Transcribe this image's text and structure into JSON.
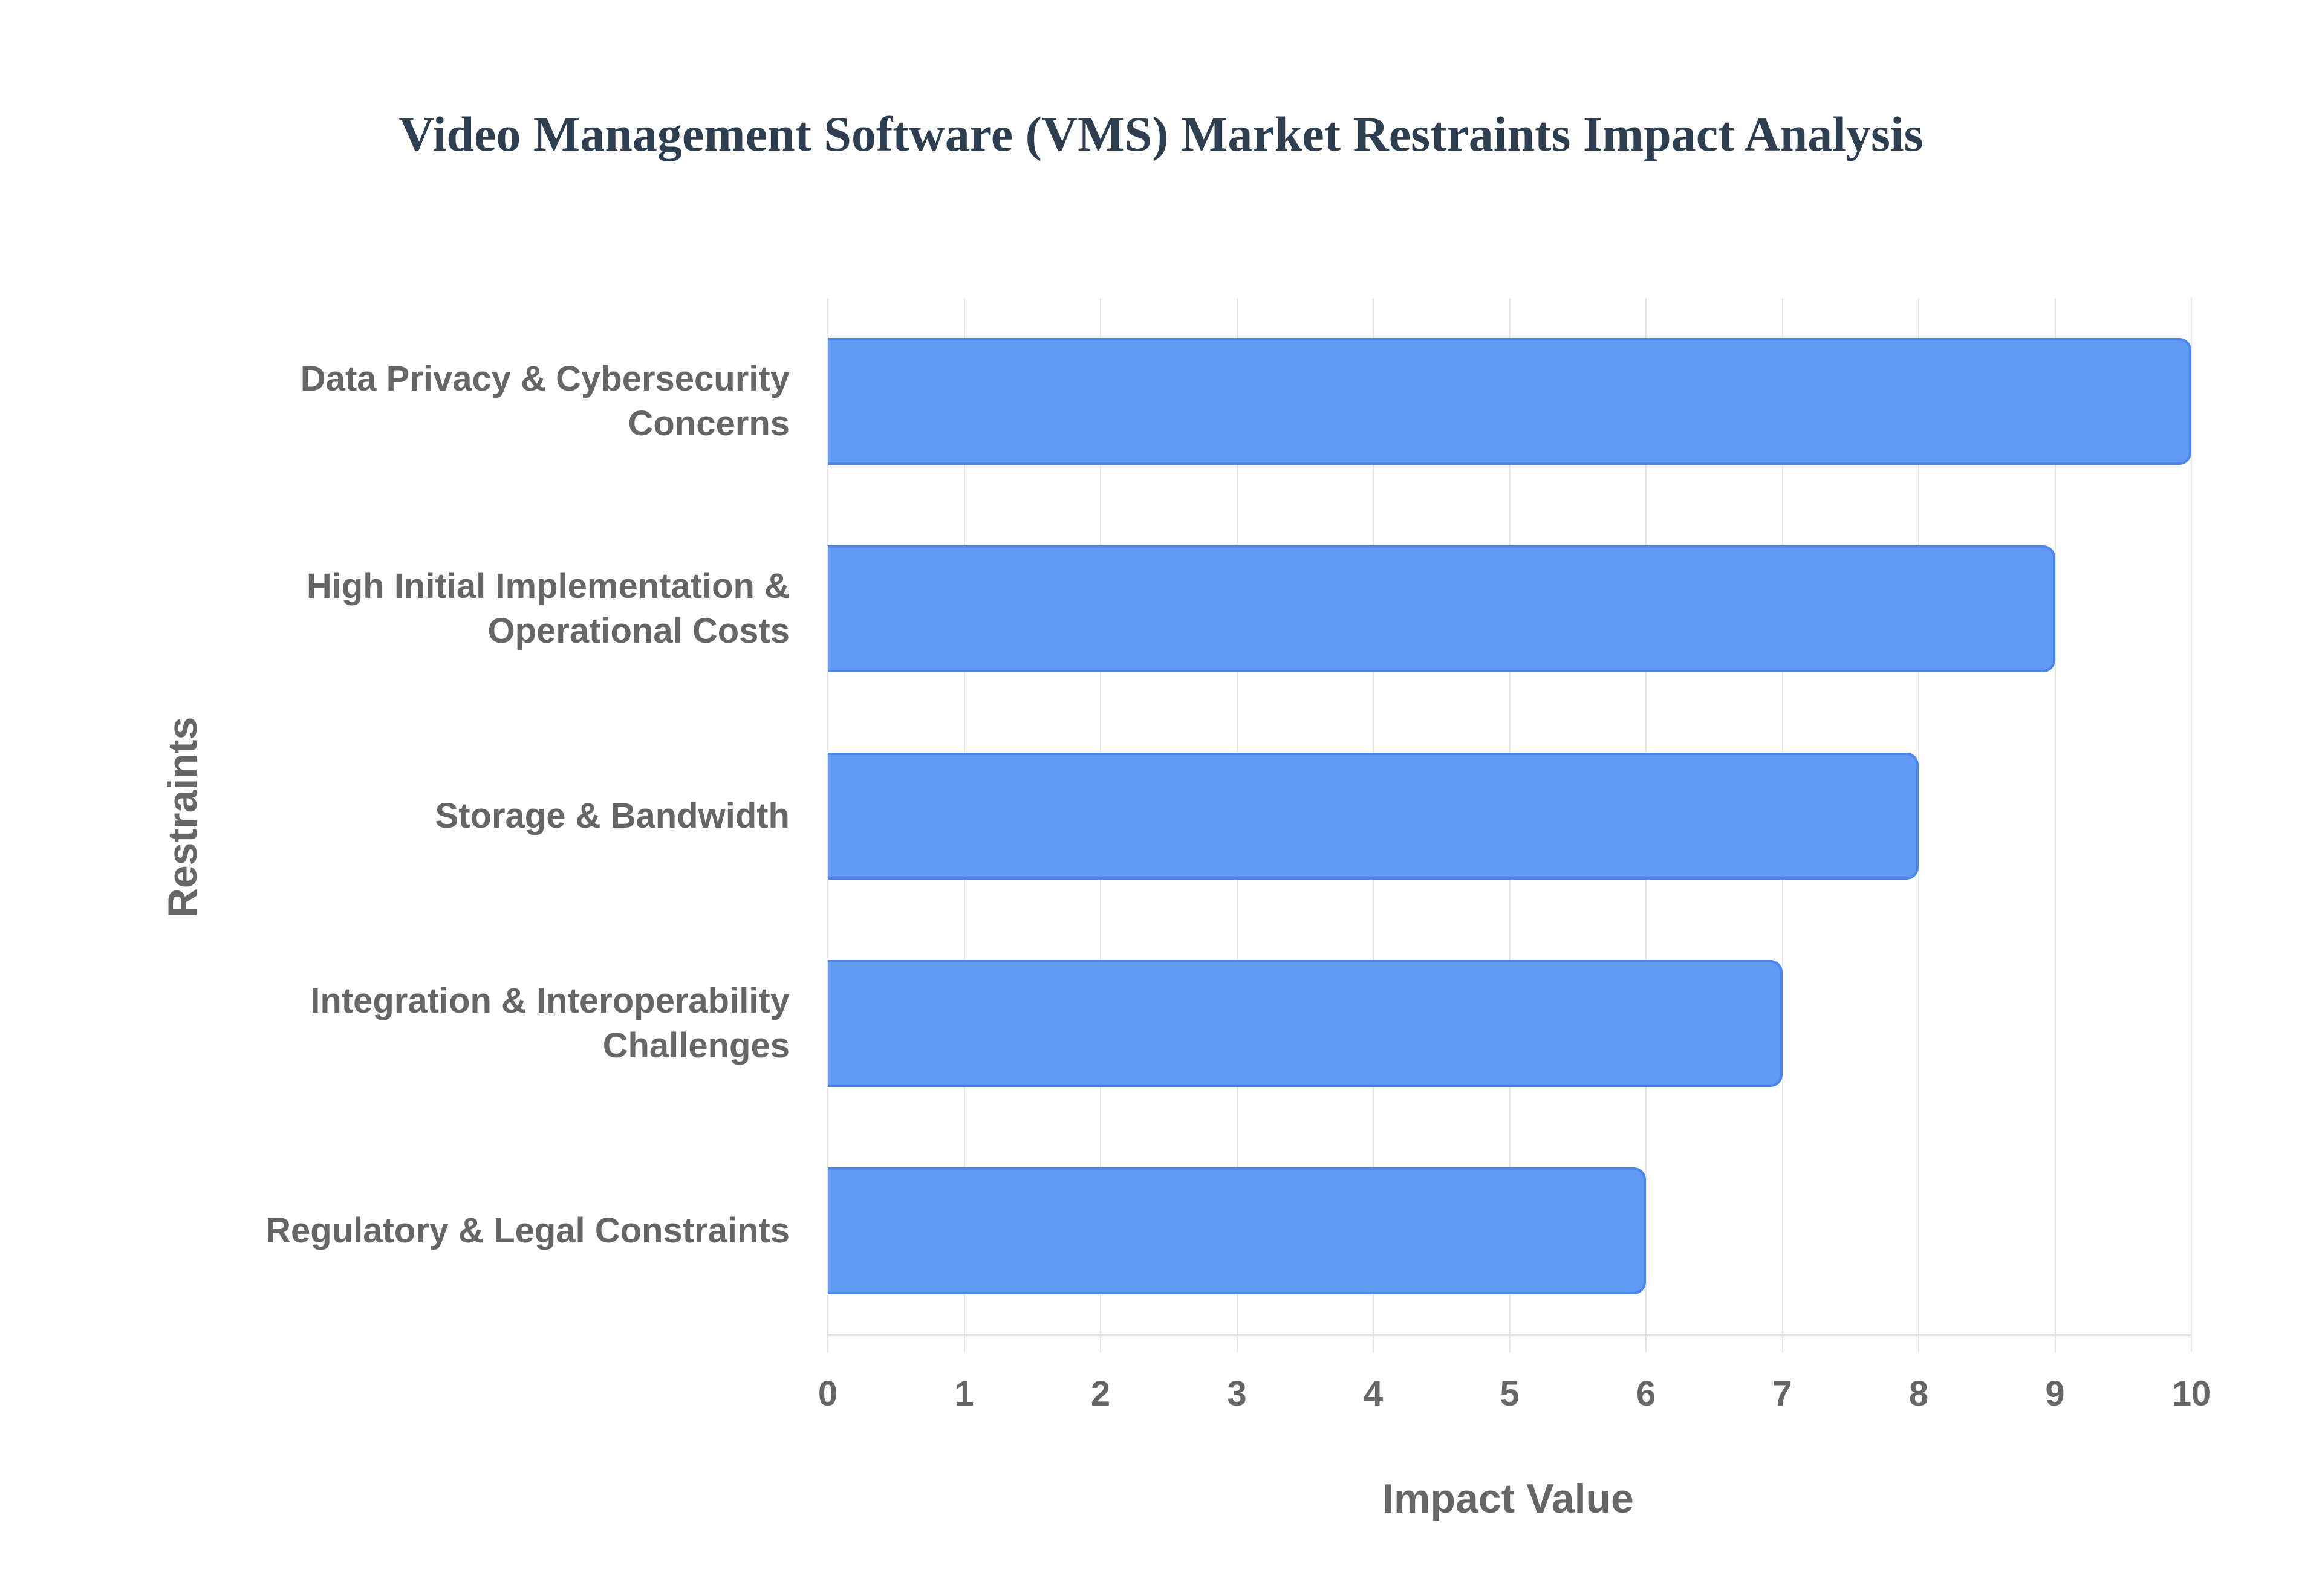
{
  "chart_data": {
    "type": "bar",
    "orientation": "horizontal",
    "title": "Video Management Software (VMS) Market Restraints Impact Analysis",
    "xlabel": "Impact Value",
    "ylabel": "Restraints",
    "categories": [
      "Data Privacy & Cybersecurity Concerns",
      "High Initial Implementation & Operational Costs",
      "Storage & Bandwidth",
      "Integration & Interoperability Challenges",
      "Regulatory & Legal Constraints"
    ],
    "category_lines": [
      [
        "Data Privacy & Cybersecurity",
        "Concerns"
      ],
      [
        "High Initial Implementation &",
        "Operational Costs"
      ],
      [
        "Storage & Bandwidth"
      ],
      [
        "Integration & Interoperability",
        "Challenges"
      ],
      [
        "Regulatory & Legal Constraints"
      ]
    ],
    "values": [
      10,
      9,
      8,
      7,
      6
    ],
    "xlim": [
      0,
      10
    ],
    "xticks": [
      "0",
      "1",
      "2",
      "3",
      "4",
      "5",
      "6",
      "7",
      "8",
      "9",
      "10"
    ],
    "grid": true,
    "legend": null,
    "colors": {
      "bar_fill": "#6299f5",
      "bar_border": "#4a86ec",
      "title": "#2c3e50",
      "axis_text": "#666666",
      "grid": "#e6e6e6"
    }
  }
}
